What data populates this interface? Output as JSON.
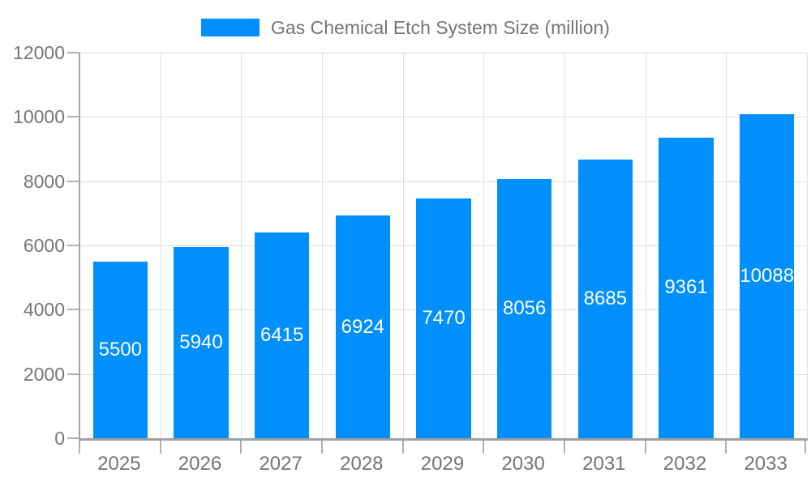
{
  "legend": {
    "label": "Gas Chemical Etch System Size (million)"
  },
  "chart_data": {
    "type": "bar",
    "title": "Gas Chemical Etch System Size (million)",
    "categories": [
      "2025",
      "2026",
      "2027",
      "2028",
      "2029",
      "2030",
      "2031",
      "2032",
      "2033"
    ],
    "values": [
      5500,
      5940,
      6415,
      6924,
      7470,
      8056,
      8685,
      9361,
      10088
    ],
    "xlabel": "",
    "ylabel": "",
    "ylim": [
      0,
      12000
    ],
    "yticks": [
      0,
      2000,
      4000,
      6000,
      8000,
      10000,
      12000
    ],
    "grid": true,
    "legend_position": "top",
    "colors": {
      "bar": "#008FFB",
      "bar_label": "#FFFFFF",
      "axis_label": "#757575",
      "gridline": "#DCDCDC",
      "axis_line": "#A6A6A6"
    }
  }
}
